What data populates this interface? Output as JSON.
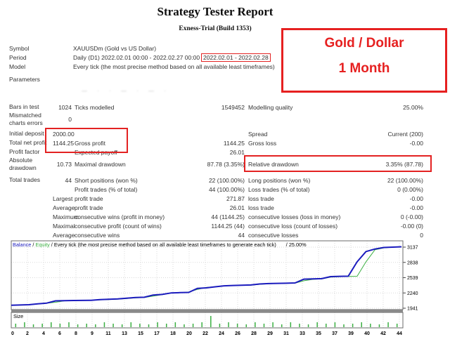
{
  "title": "Strategy Tester Report",
  "subtitle": "Exness-Trial (Build 1353)",
  "annotation": {
    "line1": "Gold / Dollar",
    "line2": "1 Month",
    "color": "#e62020"
  },
  "info": {
    "symbol_label": "Symbol",
    "symbol_value": "XAUUSDm (Gold vs US Dollar)",
    "period_label": "Period",
    "period_value": "Daily (D1) 2022.02.01 00:00 - 2022.02.27 00:00",
    "period_highlight": "2022.02.01 - 2022.02.28",
    "model_label": "Model",
    "model_value": "Every tick (the most precise method based on all available least timeframes)",
    "parameters_label": "Parameters",
    "parameters_blur": "—  ·  ·  —  ·  —  ·"
  },
  "stats": {
    "rows": [
      {
        "l1": "Bars in test",
        "v1": "1024",
        "l2": "Ticks modelled",
        "v2": "1549452",
        "l3": "Modelling quality",
        "v3": "25.00%"
      },
      {
        "l1": "Mismatched charts errors",
        "v1": "0",
        "l2": "",
        "v2": "",
        "l3": "",
        "v3": ""
      },
      {
        "l1": "Initial deposit",
        "v1": "2000.00",
        "l2": "",
        "v2": "",
        "l3": "Spread",
        "v3": "Current (200)"
      },
      {
        "l1": "Total net profit",
        "v1": "1144.25",
        "l2": "Gross profit",
        "v2": "1144.25",
        "l3": "Gross loss",
        "v3": "-0.00"
      },
      {
        "l1": "Profit factor",
        "v1": "",
        "l2": "Expected payoff",
        "v2": "26.01",
        "l3": "",
        "v3": ""
      },
      {
        "l1": "Absolute drawdown",
        "v1": "10.73",
        "l2": "Maximal drawdown",
        "v2": "87.78 (3.35%)",
        "l3": "Relative drawdown",
        "v3": "3.35% (87.78)"
      },
      {
        "l1": "Total trades",
        "v1": "44",
        "l2": "Short positions (won %)",
        "v2": "22 (100.00%)",
        "l3": "Long positions (won %)",
        "v3": "22 (100.00%)"
      },
      {
        "l1": "",
        "v1": "",
        "l2": "Profit trades (% of total)",
        "v2": "44 (100.00%)",
        "l3": "Loss trades (% of total)",
        "v3": "0 (0.00%)"
      },
      {
        "l1": "",
        "v1": "Largest",
        "l2": "profit trade",
        "v2": "271.87",
        "l3": "loss trade",
        "v3": "-0.00"
      },
      {
        "l1": "",
        "v1": "Average",
        "l2": "profit trade",
        "v2": "26.01",
        "l3": "loss trade",
        "v3": "-0.00"
      },
      {
        "l1": "",
        "v1": "Maximum",
        "l2": "consecutive wins (profit in money)",
        "v2": "44 (1144.25)",
        "l3": "consecutive losses (loss in money)",
        "v3": "0 (-0.00)"
      },
      {
        "l1": "",
        "v1": "Maximal",
        "l2": "consecutive profit (count of wins)",
        "v2": "1144.25 (44)",
        "l3": "consecutive loss (count of losses)",
        "v3": "-0.00 (0)"
      },
      {
        "l1": "",
        "v1": "Average",
        "l2": "consecutive wins",
        "v2": "44",
        "l3": "consecutive losses",
        "v3": "0"
      }
    ]
  },
  "chart_data": {
    "type": "line",
    "legend": {
      "balance": "Balance",
      "sep": " / ",
      "equity": "Equity",
      "rest": " / Every tick (the most precise method based on all available least timeframes to generate each tick)",
      "quality": "/ 25.00%"
    },
    "x_range": [
      0,
      44
    ],
    "x_tick_labels": [
      "0",
      "2",
      "4",
      "6",
      "8",
      "9",
      "11",
      "13",
      "15",
      "17",
      "18",
      "20",
      "22",
      "24",
      "26",
      "28",
      "29",
      "31",
      "33",
      "35",
      "37",
      "39",
      "40",
      "42",
      "44"
    ],
    "y_tick_labels": [
      "3137",
      "2838",
      "2539",
      "2240",
      "1941"
    ],
    "ylim": [
      1941,
      3137
    ],
    "grid": true,
    "legend_position": "top-left",
    "series": [
      {
        "name": "Balance",
        "color": "#1b1bbe",
        "width": 2,
        "values": [
          2000,
          2004,
          2010,
          2028,
          2042,
          2085,
          2090,
          2092,
          2094,
          2097,
          2110,
          2116,
          2122,
          2136,
          2150,
          2156,
          2200,
          2210,
          2240,
          2246,
          2250,
          2330,
          2340,
          2360,
          2380,
          2386,
          2390,
          2396,
          2415,
          2424,
          2428,
          2431,
          2436,
          2510,
          2515,
          2520,
          2560,
          2565,
          2568,
          2850,
          3050,
          3100,
          3130,
          3137,
          3144
        ]
      },
      {
        "name": "Equity",
        "color": "#3cb043",
        "width": 1,
        "values": [
          2000,
          2002,
          2007,
          2024,
          2038,
          2058,
          2086,
          2089,
          2092,
          2095,
          2104,
          2112,
          2118,
          2130,
          2144,
          2150,
          2178,
          2206,
          2236,
          2243,
          2258,
          2310,
          2348,
          2362,
          2378,
          2383,
          2388,
          2392,
          2408,
          2420,
          2425,
          2428,
          2432,
          2478,
          2506,
          2516,
          2548,
          2558,
          2562,
          2566,
          2850,
          3085,
          3122,
          3137,
          3144
        ]
      }
    ],
    "size_panel": {
      "label": "Size",
      "bar_color": "#3cb043",
      "bar_heights": [
        5,
        7,
        4,
        5,
        7,
        5,
        7,
        4,
        5,
        4,
        7,
        5,
        4,
        7,
        5,
        4,
        7,
        5,
        7,
        4,
        5,
        7,
        16,
        5,
        7,
        5,
        4,
        7,
        5,
        7,
        4,
        7,
        5,
        4,
        7,
        5,
        7,
        4,
        5,
        7,
        5,
        4,
        7,
        5
      ]
    },
    "colors": {
      "grid": "#d9d9d9",
      "frame": "#6b6b6b",
      "separator": "#8f8f8f",
      "tick": "#444444",
      "axis_text": "#000000"
    }
  }
}
